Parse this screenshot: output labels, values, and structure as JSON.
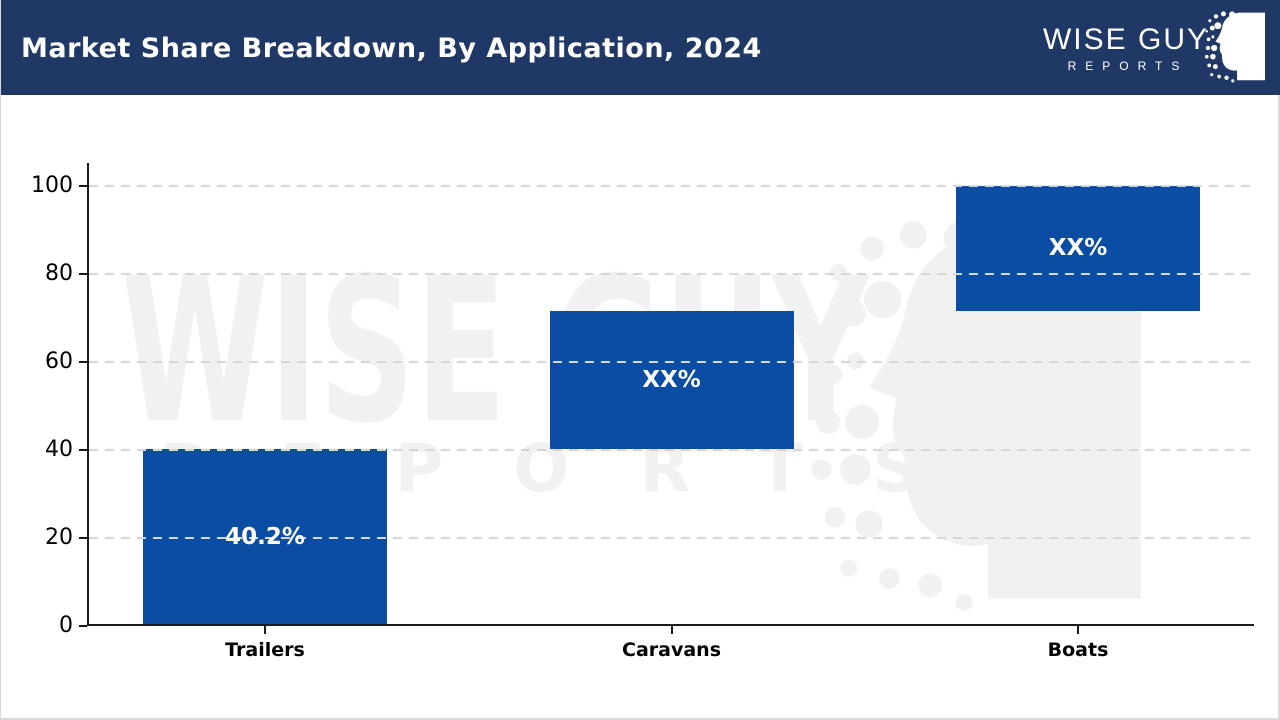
{
  "header": {
    "title": "Market Share Breakdown, By Application, 2024",
    "bg_color": "#1f3865",
    "logo": {
      "line1": "WISE GUY",
      "line2": "REPORTS",
      "icon": "dotted-face-profile"
    }
  },
  "watermark": {
    "line1": "WISE GUY",
    "line2": "REPORTS",
    "icon": "dotted-face-profile",
    "color": "#f1f1f1"
  },
  "chart_data": {
    "type": "waterfall",
    "title": "Market Share Breakdown, By Application, 2024",
    "categories": [
      "Trailers",
      "Caravans",
      "Boats"
    ],
    "segments": [
      {
        "category": "Trailers",
        "start": 0,
        "end": 40.2,
        "value_label": "40.2%"
      },
      {
        "category": "Caravans",
        "start": 40.2,
        "end": 71.5,
        "value_label": "XX%"
      },
      {
        "category": "Boats",
        "start": 71.5,
        "end": 100,
        "value_label": "XX%"
      }
    ],
    "ylim": [
      0,
      100
    ],
    "yticks": [
      0,
      20,
      40,
      60,
      80,
      100
    ],
    "grid": "horizontal-dashed",
    "legend": "none",
    "bar_color": "#0b4da2",
    "value_label_color": "#ffffff",
    "axis_color": "#1a1a1a"
  }
}
